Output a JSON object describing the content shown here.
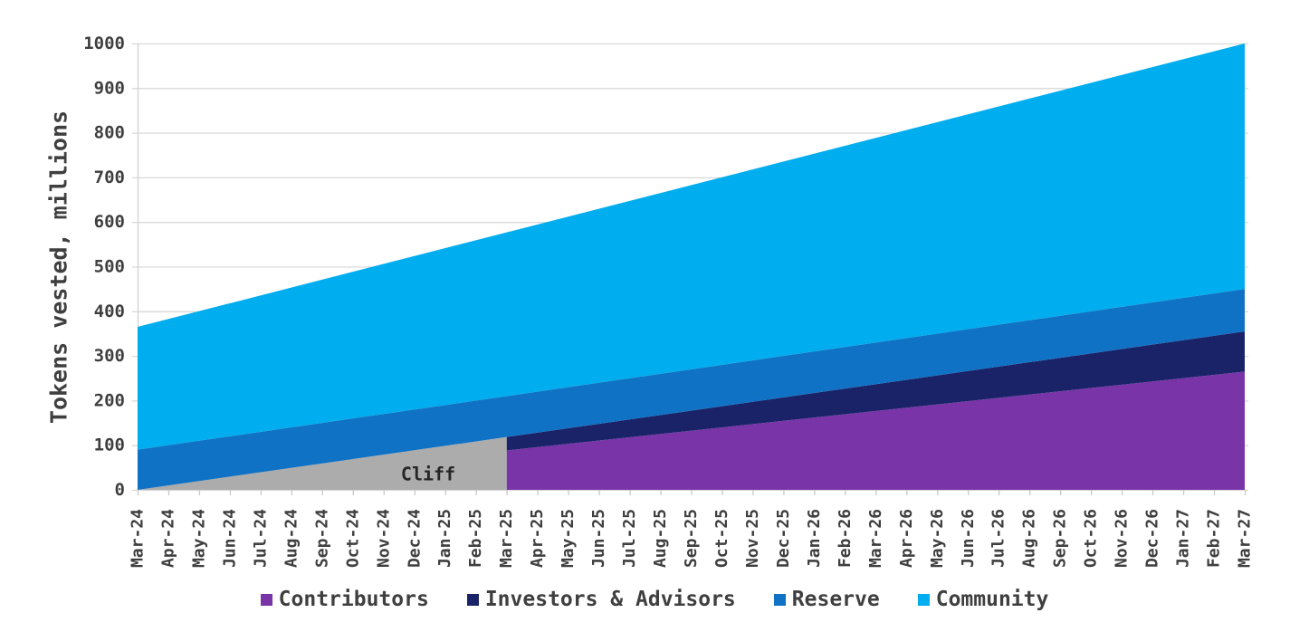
{
  "page": {
    "background": "#ffffff"
  },
  "chart_data": {
    "type": "area",
    "stacked": true,
    "title": "",
    "xlabel": "",
    "ylabel": "Tokens vested, millions",
    "ylim": [
      0,
      1000
    ],
    "y_ticks": [
      0,
      100,
      200,
      300,
      400,
      500,
      600,
      700,
      800,
      900,
      1000
    ],
    "grid": true,
    "grid_color": "#d9d9d9",
    "axis_line_color": "#d2d2d2",
    "tick_mark_color": "#c9c9c9",
    "tick_label_color": "#3f3f3f",
    "x_labels": [
      "Mar-24",
      "Apr-24",
      "May-24",
      "Jun-24",
      "Jul-24",
      "Aug-24",
      "Sep-24",
      "Oct-24",
      "Nov-24",
      "Dec-24",
      "Jan-25",
      "Feb-25",
      "Mar-25",
      "Apr-25",
      "May-25",
      "Jun-25",
      "Jul-25",
      "Aug-25",
      "Sep-25",
      "Oct-25",
      "Nov-25",
      "Dec-25",
      "Jan-26",
      "Feb-26",
      "Mar-26",
      "Apr-26",
      "May-26",
      "Jun-26",
      "Jul-26",
      "Aug-26",
      "Sep-26",
      "Oct-26",
      "Nov-26",
      "Dec-26",
      "Jan-27",
      "Feb-27",
      "Mar-27"
    ],
    "x_keypoints_months": [
      0,
      12,
      12,
      36
    ],
    "series": [
      {
        "name": "Contributors",
        "color": "#7934A8",
        "in_legend": true,
        "keypoint_values": [
          0,
          0,
          88.3,
          265
        ],
        "total_millions": 265,
        "cliff_months": 12
      },
      {
        "name": "Investors & Advisors",
        "color": "#1A2368",
        "in_legend": true,
        "keypoint_values": [
          0,
          0,
          30,
          90
        ],
        "total_millions": 90,
        "cliff_months": 12
      },
      {
        "name": "Cliff",
        "color": "#ACACAC",
        "in_legend": false,
        "keypoint_values": [
          0,
          118.3,
          0,
          0
        ],
        "annotation": {
          "text": "Cliff",
          "x_month": 9.45,
          "y_value": 36,
          "color": "#262626",
          "font_size": 20
        }
      },
      {
        "name": "Reserve",
        "color": "#1072C4",
        "in_legend": true,
        "keypoint_values": [
          90,
          91.7,
          91.7,
          95
        ],
        "total_millions": 95
      },
      {
        "name": "Community",
        "color": "#00ADEE",
        "in_legend": true,
        "keypoint_values": [
          275,
          366.7,
          366.7,
          550
        ],
        "total_millions": 550
      }
    ],
    "legend_order": [
      "Contributors",
      "Investors & Advisors",
      "Reserve",
      "Community"
    ],
    "legend_position": "bottom",
    "totals": {
      "at_start_millions": 365,
      "at_end_millions": 1000
    }
  }
}
